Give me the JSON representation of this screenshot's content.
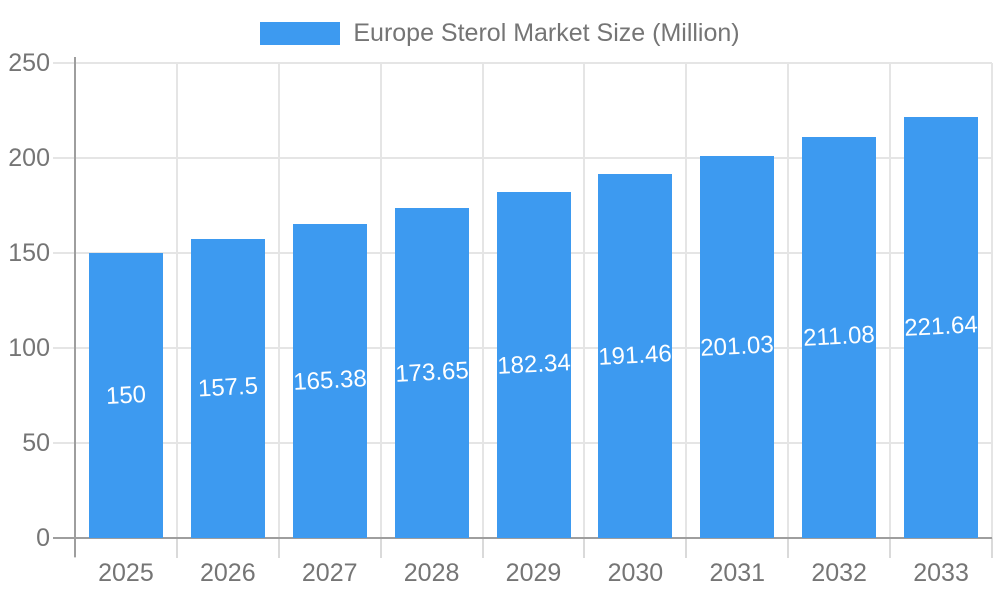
{
  "legend": {
    "label": "Europe Sterol Market Size (Million)"
  },
  "colors": {
    "bar": "#3D9AF0",
    "axis": "#9E9E9E",
    "grid": "#E5E5E5",
    "xtick": "#DADADA",
    "text": "#757575",
    "value_label": "#FFFFFF",
    "background": "#FFFFFF"
  },
  "chart_data": {
    "type": "bar",
    "title": "Europe Sterol Market Size (Million)",
    "categories": [
      "2025",
      "2026",
      "2027",
      "2028",
      "2029",
      "2030",
      "2031",
      "2032",
      "2033"
    ],
    "values": [
      150,
      157.5,
      165.38,
      173.65,
      182.34,
      191.46,
      201.03,
      211.08,
      221.64
    ],
    "value_labels": [
      "150",
      "157.5",
      "165.38",
      "173.65",
      "182.34",
      "191.46",
      "201.03",
      "211.08",
      "221.64"
    ],
    "series_name": "Europe Sterol Market Size (Million)",
    "xlabel": "",
    "ylabel": "",
    "ylim": [
      0,
      250
    ],
    "ytick_step": 50,
    "ytick_labels": [
      "0",
      "50",
      "100",
      "150",
      "200",
      "250"
    ],
    "grid": true,
    "legend_position": "top",
    "value_label_position": "inside-center"
  }
}
